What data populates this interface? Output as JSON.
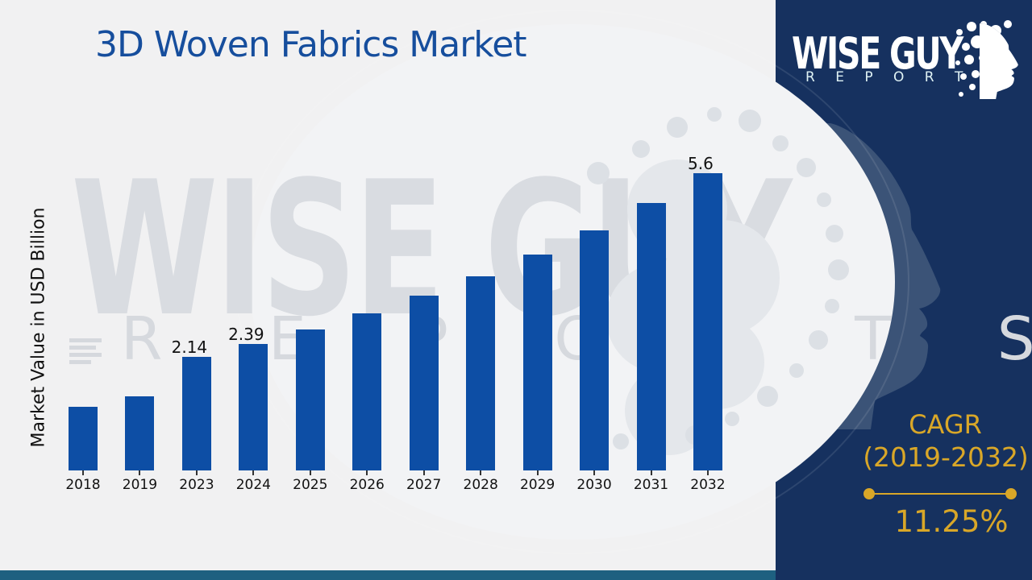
{
  "title": "3D Woven Fabrics Market",
  "watermark": {
    "wordmark": "WISE GUY",
    "reports": "R E P O R T S"
  },
  "logo": {
    "wordmark": "WISE GUY",
    "reports": "R E P O R T S"
  },
  "cagr": {
    "label": "CAGR",
    "range": "(2019-2032)",
    "value": "11.25%"
  },
  "colors": {
    "bar": "#0D4EA5",
    "navy_panel": "#16315F",
    "face_silhouette": "#3B5377",
    "gold": "#D9A728",
    "title_blue": "#164E9D",
    "teal_strip": "#1E6080"
  },
  "chart_data": {
    "type": "bar",
    "title": "3D Woven Fabrics Market",
    "xlabel": "",
    "ylabel": "Market Value in USD Billion",
    "categories": [
      "2018",
      "2019",
      "2023",
      "2024",
      "2025",
      "2026",
      "2027",
      "2028",
      "2029",
      "2030",
      "2031",
      "2032"
    ],
    "values": [
      1.2,
      1.4,
      2.14,
      2.39,
      2.66,
      2.96,
      3.29,
      3.66,
      4.07,
      4.53,
      5.04,
      5.6
    ],
    "data_labels": [
      "",
      "",
      "2.14",
      "2.39",
      "",
      "",
      "",
      "",
      "",
      "",
      "",
      "5.6"
    ],
    "ylim": [
      0,
      6
    ],
    "grid": false,
    "legend": "none",
    "bar_color": "#0D4EA5"
  }
}
